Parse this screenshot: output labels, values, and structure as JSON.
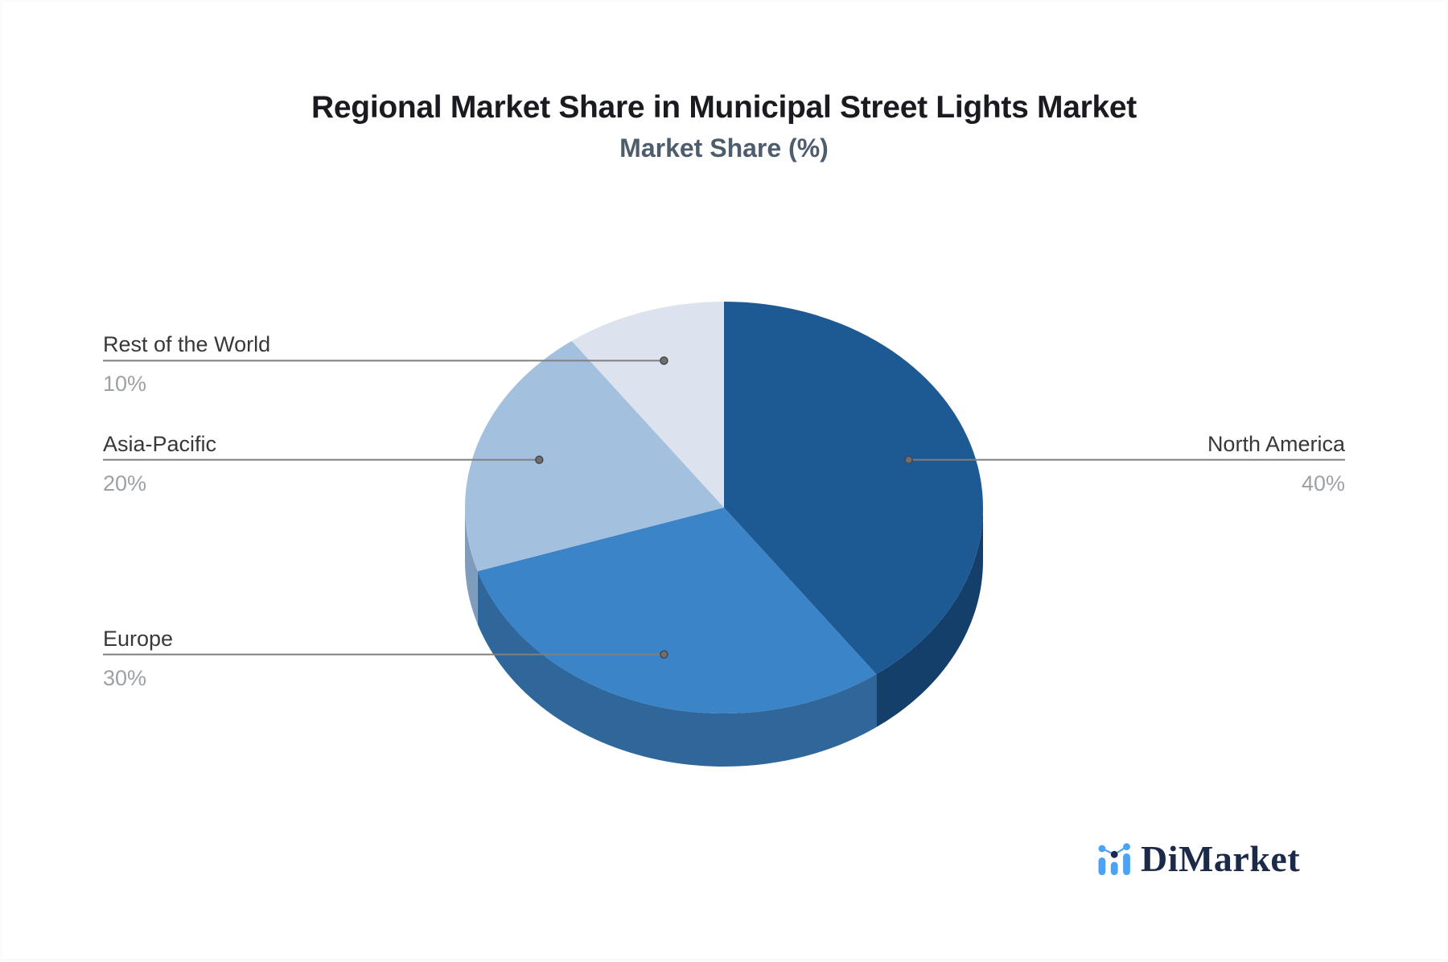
{
  "chart_data": {
    "type": "pie",
    "style": "3d-pie",
    "title": "Regional Market Share in Municipal Street Lights Market",
    "subtitle": "Market Share (%)",
    "unit": "percent",
    "categories": [
      "North America",
      "Europe",
      "Asia-Pacific",
      "Rest of the World"
    ],
    "values": [
      40,
      30,
      20,
      10
    ],
    "start_angle": "12-oclock-clockwise",
    "grid": false,
    "legend_position": "callout-labels",
    "slices": [
      {
        "label": "North America",
        "value": 40,
        "display": "40%",
        "color": "#1d5a94",
        "side_color": "#153f6b",
        "callout_side": "right"
      },
      {
        "label": "Europe",
        "value": 30,
        "display": "30%",
        "color": "#3b84c8",
        "side_color": "#2f679b",
        "callout_side": "left"
      },
      {
        "label": "Asia-Pacific",
        "value": 20,
        "display": "20%",
        "color": "#a3c1de",
        "side_color": "#7f9cbd",
        "callout_side": "left"
      },
      {
        "label": "Rest of the World",
        "value": 10,
        "display": "10%",
        "color": "#dce3ef",
        "side_color": "#b9c6d9",
        "callout_side": "left"
      }
    ]
  },
  "branding": {
    "name": "DiMarket",
    "icon": "bar-chart-logo-icon",
    "icon_color": "#4BA3F5",
    "text_color": "#1c2a49"
  },
  "colors": {
    "background": "#ffffff",
    "title_text": "#1a1b20",
    "subtitle_text": "#4e5d6d",
    "label_text": "#36383c",
    "value_text": "#9da1a6",
    "leader_line": "#7f7f7f",
    "leader_dot": "#6f6f6f"
  }
}
